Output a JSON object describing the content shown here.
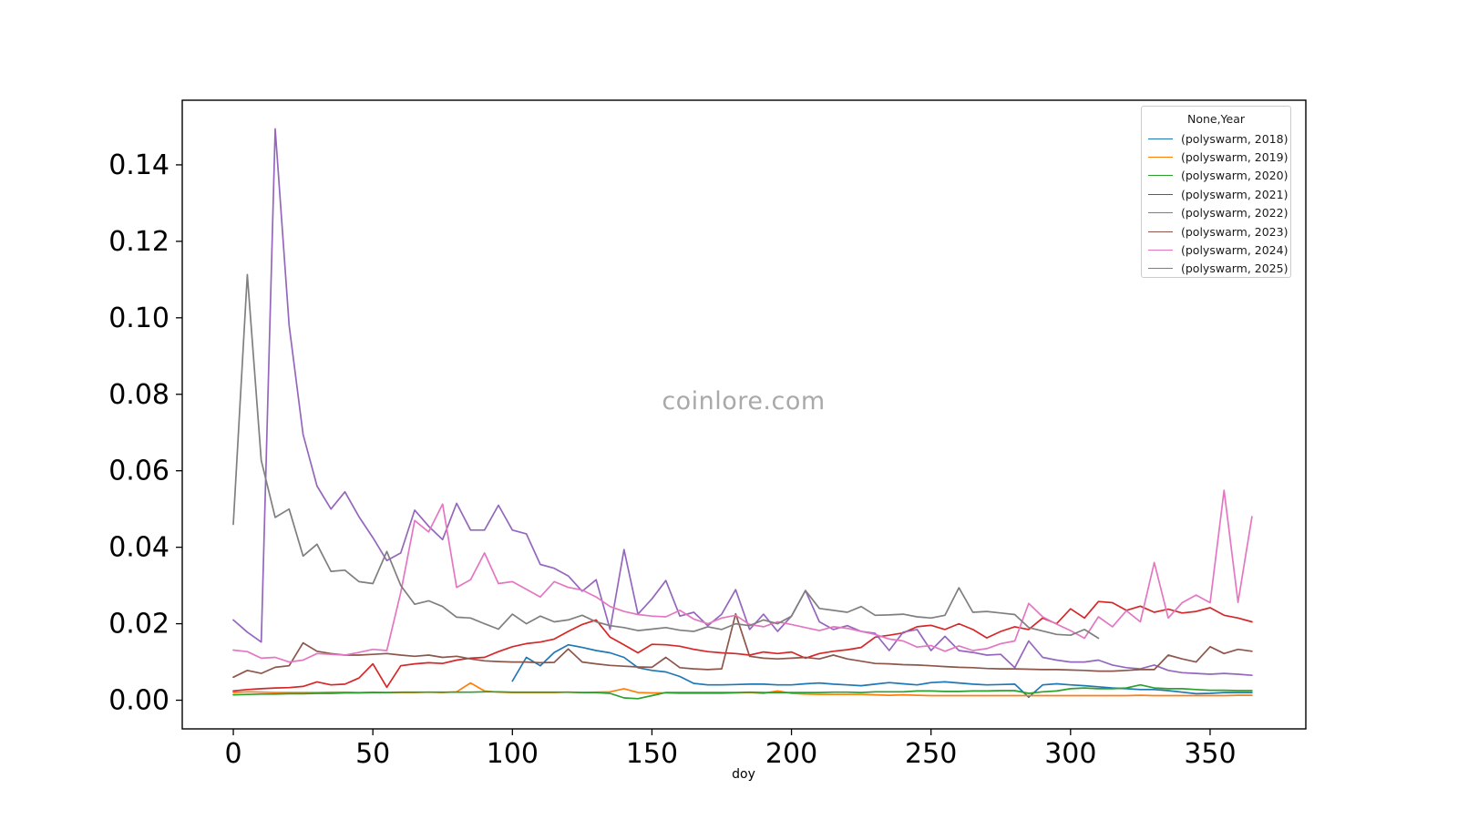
{
  "watermark": "coinlore.com",
  "chart_data": {
    "type": "line",
    "title": "",
    "xlabel": "doy",
    "ylabel": "",
    "grid": false,
    "legend_title": "None,Year",
    "legend_position": "upper right",
    "xlim": [
      -18.3,
      384.3
    ],
    "ylim": [
      -0.0075,
      0.1569
    ],
    "x_ticks": [
      0,
      50,
      100,
      150,
      200,
      250,
      300,
      350
    ],
    "y_tick_labels": [
      "0.00",
      "0.02",
      "0.04",
      "0.06",
      "0.08",
      "0.10",
      "0.12",
      "0.14"
    ],
    "doy_step": 5,
    "series": [
      {
        "name": "(polyswarm, 2018)",
        "year": "2018",
        "color": "#1f77b4",
        "values": [
          null,
          null,
          null,
          null,
          null,
          null,
          null,
          null,
          null,
          null,
          null,
          null,
          null,
          null,
          null,
          null,
          null,
          null,
          null,
          null,
          0.005,
          0.0112,
          0.009,
          0.0125,
          0.0145,
          0.0138,
          0.013,
          0.0124,
          0.0112,
          0.0085,
          0.0078,
          0.0074,
          0.0062,
          0.0044,
          0.004,
          0.004,
          0.0041,
          0.0042,
          0.0042,
          0.004,
          0.004,
          0.0043,
          0.0045,
          0.0042,
          0.004,
          0.0038,
          0.0042,
          0.0046,
          0.0043,
          0.004,
          0.0046,
          0.0048,
          0.0045,
          0.0042,
          0.004,
          0.0041,
          0.0042,
          0.0008,
          0.004,
          0.0043,
          0.004,
          0.0038,
          0.0035,
          0.0032,
          0.003,
          0.0028,
          0.0028,
          0.0025,
          0.0021,
          0.0017,
          0.0018,
          0.002,
          0.002,
          0.002
        ]
      },
      {
        "name": "(polyswarm, 2019)",
        "year": "2019",
        "color": "#ff7f0e",
        "values": [
          0.002,
          0.0022,
          0.0021,
          0.002,
          0.002,
          0.002,
          0.002,
          0.0021,
          0.0021,
          0.002,
          0.0021,
          0.002,
          0.002,
          0.002,
          0.0021,
          0.002,
          0.0022,
          0.0045,
          0.0024,
          0.0021,
          0.002,
          0.002,
          0.002,
          0.002,
          0.0021,
          0.002,
          0.0021,
          0.0022,
          0.003,
          0.002,
          0.0019,
          0.0019,
          0.0018,
          0.0018,
          0.0018,
          0.0018,
          0.0019,
          0.002,
          0.0018,
          0.0024,
          0.0018,
          0.0016,
          0.0015,
          0.0015,
          0.0015,
          0.0015,
          0.0014,
          0.0013,
          0.0014,
          0.0013,
          0.0012,
          0.0012,
          0.0012,
          0.0012,
          0.0012,
          0.0012,
          0.0012,
          0.0012,
          0.0012,
          0.0012,
          0.0012,
          0.0012,
          0.0012,
          0.0012,
          0.0012,
          0.0013,
          0.0012,
          0.0012,
          0.0012,
          0.0012,
          0.0012,
          0.0012,
          0.0013,
          0.0013
        ]
      },
      {
        "name": "(polyswarm, 2020)",
        "year": "2020",
        "color": "#2ca02c",
        "values": [
          0.0014,
          0.0015,
          0.0016,
          0.0016,
          0.0017,
          0.0017,
          0.0018,
          0.0018,
          0.0019,
          0.0019,
          0.002,
          0.002,
          0.0021,
          0.0021,
          0.0021,
          0.0021,
          0.0021,
          0.0021,
          0.0022,
          0.0022,
          0.0021,
          0.0021,
          0.0021,
          0.0021,
          0.0021,
          0.002,
          0.002,
          0.0018,
          0.0006,
          0.0004,
          0.0012,
          0.002,
          0.002,
          0.002,
          0.002,
          0.002,
          0.002,
          0.0021,
          0.002,
          0.002,
          0.002,
          0.002,
          0.002,
          0.0021,
          0.0021,
          0.002,
          0.0022,
          0.0022,
          0.0022,
          0.0024,
          0.0024,
          0.0023,
          0.0023,
          0.0024,
          0.0024,
          0.0025,
          0.0025,
          0.0018,
          0.0022,
          0.0024,
          0.003,
          0.0032,
          0.003,
          0.003,
          0.0032,
          0.004,
          0.0032,
          0.003,
          0.003,
          0.0028,
          0.0026,
          0.0026,
          0.0025,
          0.0025
        ]
      },
      {
        "name": "(polyswarm, 2021)",
        "year": "2021",
        "color": "#d62728",
        "values": [
          0.0024,
          0.0028,
          0.003,
          0.0032,
          0.0033,
          0.0036,
          0.0048,
          0.004,
          0.0042,
          0.0058,
          0.0095,
          0.0034,
          0.009,
          0.0095,
          0.0098,
          0.0096,
          0.0105,
          0.011,
          0.0112,
          0.0127,
          0.014,
          0.0148,
          0.0152,
          0.016,
          0.018,
          0.0198,
          0.021,
          0.0165,
          0.0145,
          0.0124,
          0.0146,
          0.0145,
          0.0141,
          0.0133,
          0.0127,
          0.0124,
          0.0122,
          0.0118,
          0.0126,
          0.0122,
          0.0126,
          0.011,
          0.0122,
          0.0128,
          0.0132,
          0.0138,
          0.0165,
          0.017,
          0.0176,
          0.0192,
          0.0196,
          0.0185,
          0.02,
          0.0185,
          0.0163,
          0.018,
          0.0192,
          0.0185,
          0.0215,
          0.02,
          0.0239,
          0.0215,
          0.0258,
          0.0255,
          0.0235,
          0.0246,
          0.023,
          0.0238,
          0.0228,
          0.0232,
          0.0242,
          0.0222,
          0.0215,
          0.0205
        ]
      },
      {
        "name": "(polyswarm, 2022)",
        "year": "2022",
        "color": "#9467bd",
        "values": [
          0.021,
          0.0178,
          0.0152,
          0.1494,
          0.098,
          0.0695,
          0.056,
          0.05,
          0.0545,
          0.048,
          0.0425,
          0.0365,
          0.0385,
          0.0497,
          0.0455,
          0.042,
          0.0515,
          0.0445,
          0.0445,
          0.051,
          0.0445,
          0.0435,
          0.0355,
          0.0345,
          0.0325,
          0.0285,
          0.0315,
          0.0185,
          0.0394,
          0.0225,
          0.0265,
          0.0313,
          0.022,
          0.023,
          0.0195,
          0.0225,
          0.0289,
          0.0185,
          0.0225,
          0.018,
          0.022,
          0.0287,
          0.0205,
          0.0185,
          0.0195,
          0.018,
          0.0175,
          0.013,
          0.0178,
          0.0185,
          0.013,
          0.0167,
          0.013,
          0.0125,
          0.0118,
          0.012,
          0.0085,
          0.0155,
          0.0112,
          0.0105,
          0.01,
          0.01,
          0.0105,
          0.0092,
          0.0085,
          0.0082,
          0.0092,
          0.0078,
          0.0072,
          0.007,
          0.0068,
          0.007,
          0.0068,
          0.0065
        ]
      },
      {
        "name": "(polyswarm, 2023)",
        "year": "2023",
        "color": "#8c564b",
        "values": [
          0.006,
          0.0078,
          0.007,
          0.0086,
          0.009,
          0.015,
          0.0128,
          0.0122,
          0.0118,
          0.0118,
          0.012,
          0.0122,
          0.0118,
          0.0115,
          0.0118,
          0.0112,
          0.0115,
          0.0108,
          0.0103,
          0.0101,
          0.01,
          0.01,
          0.0098,
          0.0099,
          0.0134,
          0.01,
          0.0095,
          0.0091,
          0.0089,
          0.0087,
          0.0086,
          0.0112,
          0.0085,
          0.0082,
          0.008,
          0.0082,
          0.0226,
          0.0115,
          0.011,
          0.0108,
          0.011,
          0.0112,
          0.0108,
          0.0118,
          0.0108,
          0.0102,
          0.0096,
          0.0095,
          0.0093,
          0.0092,
          0.009,
          0.0088,
          0.0086,
          0.0085,
          0.0083,
          0.0082,
          0.0082,
          0.0081,
          0.008,
          0.008,
          0.0079,
          0.0078,
          0.0076,
          0.0076,
          0.0078,
          0.008,
          0.008,
          0.0118,
          0.0108,
          0.01,
          0.014,
          0.0122,
          0.0133,
          0.0128
        ]
      },
      {
        "name": "(polyswarm, 2024)",
        "year": "2024",
        "color": "#e377c2",
        "values": [
          0.0131,
          0.0127,
          0.011,
          0.0112,
          0.01,
          0.0105,
          0.0122,
          0.012,
          0.0118,
          0.0125,
          0.0133,
          0.013,
          0.0282,
          0.047,
          0.044,
          0.0513,
          0.0295,
          0.0315,
          0.0385,
          0.0305,
          0.031,
          0.029,
          0.027,
          0.031,
          0.0295,
          0.0288,
          0.027,
          0.0245,
          0.0232,
          0.0224,
          0.022,
          0.0218,
          0.0235,
          0.0212,
          0.02,
          0.0215,
          0.0222,
          0.0198,
          0.0192,
          0.0205,
          0.0198,
          0.019,
          0.0182,
          0.0192,
          0.0188,
          0.018,
          0.0172,
          0.016,
          0.0155,
          0.0139,
          0.0143,
          0.0128,
          0.0142,
          0.013,
          0.0135,
          0.0148,
          0.0155,
          0.0253,
          0.0218,
          0.0199,
          0.0182,
          0.0162,
          0.0218,
          0.0192,
          0.0234,
          0.0205,
          0.036,
          0.0215,
          0.0255,
          0.0275,
          0.0255,
          0.0549,
          0.0256,
          0.048
        ]
      },
      {
        "name": "(polyswarm, 2025)",
        "year": "2025",
        "color": "#7f7f7f",
        "values": [
          0.046,
          0.1113,
          0.0627,
          0.0478,
          0.05,
          0.0377,
          0.0408,
          0.0337,
          0.034,
          0.031,
          0.0305,
          0.0389,
          0.03,
          0.0251,
          0.026,
          0.0245,
          0.0217,
          0.0215,
          0.02,
          0.0186,
          0.0225,
          0.02,
          0.022,
          0.0205,
          0.021,
          0.0222,
          0.0205,
          0.0195,
          0.019,
          0.0182,
          0.0186,
          0.019,
          0.0183,
          0.018,
          0.0192,
          0.0185,
          0.02,
          0.0195,
          0.021,
          0.02,
          0.022,
          0.0287,
          0.024,
          0.0235,
          0.023,
          0.0245,
          0.0222,
          0.0223,
          0.0225,
          0.0218,
          0.0215,
          0.0222,
          0.0294,
          0.023,
          0.0232,
          0.0228,
          0.0224,
          0.019,
          0.0181,
          0.0172,
          0.017,
          0.0185,
          0.0162,
          null,
          null,
          null,
          null,
          null,
          null,
          null,
          null,
          null,
          null,
          null
        ]
      }
    ]
  }
}
